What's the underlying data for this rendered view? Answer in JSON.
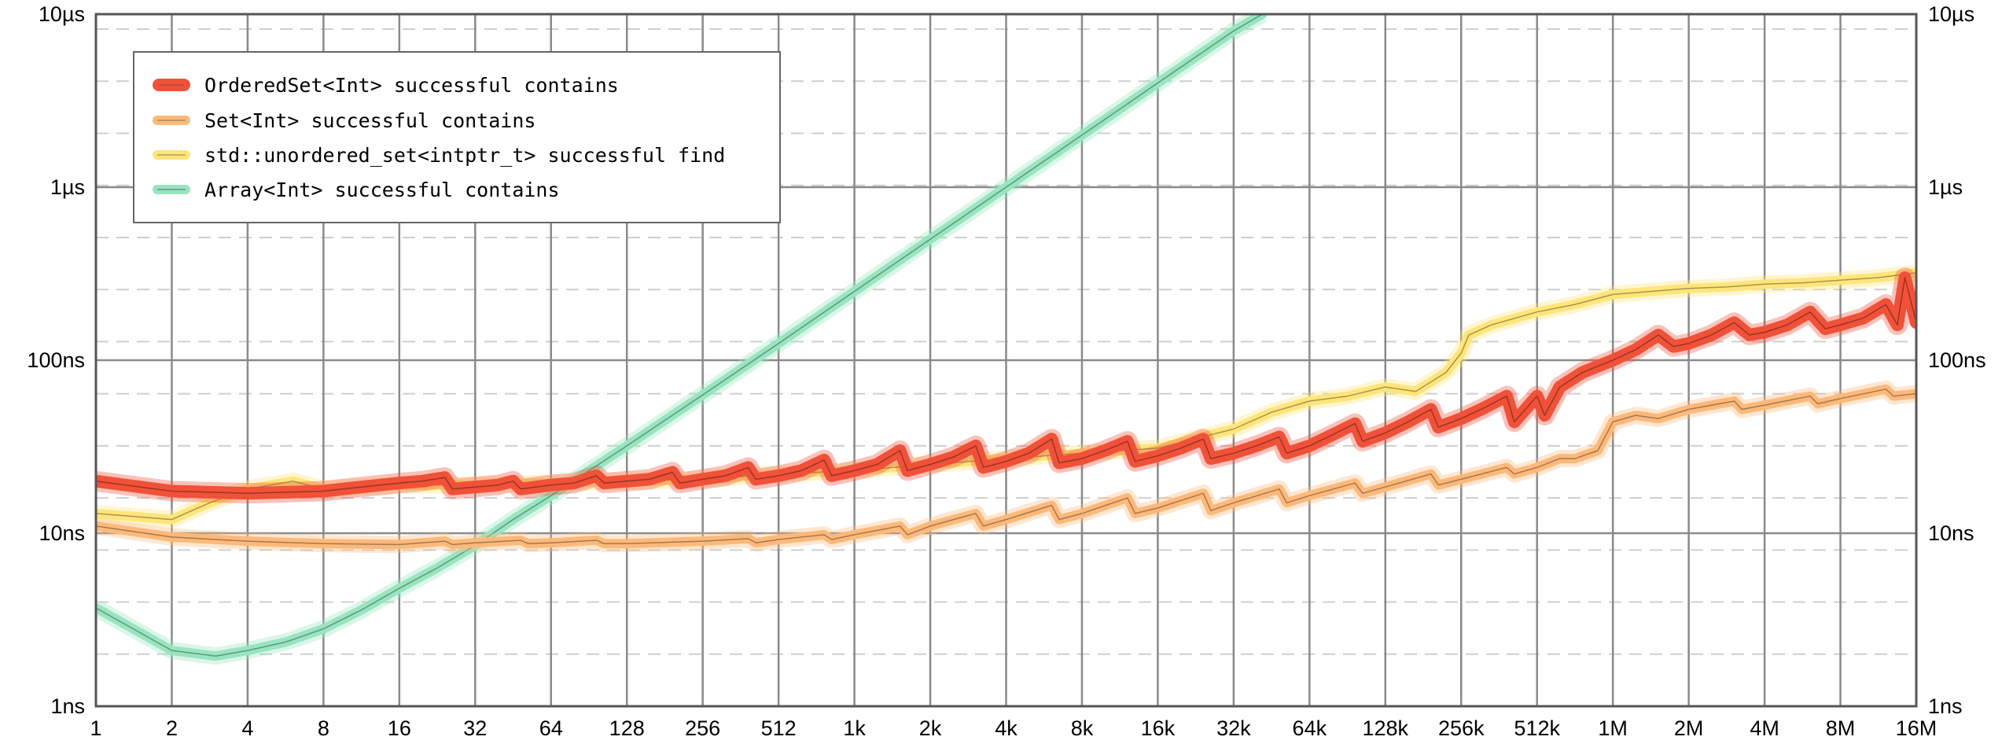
{
  "chart_data": {
    "type": "line",
    "title": "",
    "xlabel": "",
    "ylabel": "",
    "x_scale": "log2",
    "y_scale": "log10",
    "xlim": [
      1,
      16777216
    ],
    "ylim_ns": [
      1,
      10000
    ],
    "grid": true,
    "legend_position": "upper-left",
    "x_ticks": [
      {
        "value": 1,
        "label": "1"
      },
      {
        "value": 2,
        "label": "2"
      },
      {
        "value": 4,
        "label": "4"
      },
      {
        "value": 8,
        "label": "8"
      },
      {
        "value": 16,
        "label": "16"
      },
      {
        "value": 32,
        "label": "32"
      },
      {
        "value": 64,
        "label": "64"
      },
      {
        "value": 128,
        "label": "128"
      },
      {
        "value": 256,
        "label": "256"
      },
      {
        "value": 512,
        "label": "512"
      },
      {
        "value": 1024,
        "label": "1k"
      },
      {
        "value": 2048,
        "label": "2k"
      },
      {
        "value": 4096,
        "label": "4k"
      },
      {
        "value": 8192,
        "label": "8k"
      },
      {
        "value": 16384,
        "label": "16k"
      },
      {
        "value": 32768,
        "label": "32k"
      },
      {
        "value": 65536,
        "label": "64k"
      },
      {
        "value": 131072,
        "label": "128k"
      },
      {
        "value": 262144,
        "label": "256k"
      },
      {
        "value": 524288,
        "label": "512k"
      },
      {
        "value": 1048576,
        "label": "1M"
      },
      {
        "value": 2097152,
        "label": "2M"
      },
      {
        "value": 4194304,
        "label": "4M"
      },
      {
        "value": 8388608,
        "label": "8M"
      },
      {
        "value": 16777216,
        "label": "16M"
      }
    ],
    "y_ticks": [
      {
        "value": 1,
        "label": "1ns"
      },
      {
        "value": 10,
        "label": "10ns"
      },
      {
        "value": 100,
        "label": "100ns"
      },
      {
        "value": 1000,
        "label": "1µs"
      },
      {
        "value": 10000,
        "label": "10µs"
      }
    ],
    "series": [
      {
        "name": "OrderedSet<Int> successful contains",
        "color": "#F05138",
        "width": 16,
        "x_log2": [
          0,
          1,
          2,
          3,
          3.5,
          4,
          4.3,
          4.6,
          4.7,
          5,
          5.3,
          5.5,
          5.6,
          6,
          6.3,
          6.6,
          6.7,
          7,
          7.3,
          7.6,
          7.7,
          8,
          8.3,
          8.6,
          8.7,
          9,
          9.3,
          9.6,
          9.7,
          10,
          10.3,
          10.6,
          10.7,
          11,
          11.3,
          11.6,
          11.7,
          12,
          12.3,
          12.6,
          12.7,
          13,
          13.3,
          13.6,
          13.7,
          14,
          14.3,
          14.6,
          14.7,
          15,
          15.3,
          15.6,
          15.7,
          16,
          16.3,
          16.6,
          16.7,
          17,
          17.3,
          17.6,
          17.7,
          18,
          18.3,
          18.6,
          18.7,
          19,
          19.1,
          19.3,
          19.6,
          20,
          20.3,
          20.6,
          20.8,
          21,
          21.3,
          21.6,
          21.8,
          22,
          22.3,
          22.6,
          22.8,
          23,
          23.3,
          23.6,
          23.75,
          23.85,
          24
        ],
        "y_ns": [
          20,
          17.5,
          17,
          17.5,
          18.5,
          19.5,
          20,
          21,
          18,
          18.5,
          19,
          20,
          18,
          19,
          19.5,
          21.5,
          19.5,
          20,
          20.5,
          22.5,
          19.5,
          20.5,
          21.5,
          24,
          20.5,
          21.5,
          23,
          26.5,
          21.5,
          23,
          25,
          30,
          23,
          25,
          27.5,
          32,
          24,
          26,
          29,
          35,
          25.5,
          27,
          30,
          34,
          26,
          28,
          31,
          35,
          27,
          29,
          32,
          36,
          29,
          32,
          37,
          43,
          34,
          38,
          44,
          52,
          41,
          46,
          53,
          62,
          44,
          62,
          48,
          70,
          85,
          100,
          115,
          140,
          120,
          125,
          140,
          165,
          140,
          145,
          160,
          190,
          152,
          160,
          175,
          210,
          160,
          300,
          165,
          168
        ]
      },
      {
        "name": "Set<Int> successful contains",
        "color": "#FDB97A",
        "width": 12,
        "x_log2": [
          0,
          1,
          2,
          3,
          4,
          4.6,
          4.7,
          5,
          5.6,
          5.7,
          6,
          6.6,
          6.7,
          7,
          8,
          8.6,
          8.7,
          9,
          9.6,
          9.7,
          10,
          10.6,
          10.7,
          11,
          11.6,
          11.7,
          12,
          12.6,
          12.7,
          13,
          13.6,
          13.7,
          14,
          14.6,
          14.7,
          15,
          15.6,
          15.7,
          16,
          16.6,
          16.7,
          17,
          17.6,
          17.7,
          18,
          18.6,
          18.7,
          19,
          19.3,
          19.5,
          19.8,
          20,
          20.3,
          20.6,
          21,
          21.6,
          21.7,
          22,
          22.6,
          22.7,
          23,
          23.6,
          23.7,
          24
        ],
        "y_ns": [
          11,
          9.5,
          9,
          8.7,
          8.6,
          9,
          8.6,
          8.8,
          9.1,
          8.7,
          8.8,
          9.1,
          8.7,
          8.7,
          9,
          9.3,
          8.8,
          9.2,
          9.8,
          9.2,
          9.8,
          11,
          9.8,
          11,
          13,
          11,
          12,
          14.5,
          12,
          13,
          16,
          13,
          14,
          17,
          13.5,
          15,
          18,
          15,
          16.5,
          19.5,
          17,
          18.5,
          22,
          19,
          20.5,
          24,
          22,
          24,
          27,
          27,
          30,
          44,
          48,
          46,
          52,
          58,
          52,
          55,
          62,
          56,
          60,
          68,
          62,
          64,
          68
        ]
      },
      {
        "name": "std::unordered_set<intptr_t> successful find",
        "color": "#FFE57A",
        "width": 12,
        "x_log2": [
          0,
          1,
          1.5,
          2,
          2.6,
          3,
          4,
          5,
          6,
          7,
          8,
          9,
          10,
          11,
          12,
          13,
          14,
          15,
          15.5,
          16,
          16.5,
          17,
          17.4,
          17.8,
          18,
          18.1,
          18.4,
          19,
          19.5,
          20,
          20.5,
          21,
          21.5,
          22,
          22.5,
          23,
          23.5,
          24
        ],
        "y_ns": [
          13,
          12,
          15,
          18,
          20,
          18,
          19,
          19,
          19.5,
          20,
          20.5,
          22,
          23,
          25,
          27,
          29,
          31,
          40,
          50,
          58,
          62,
          70,
          66,
          85,
          110,
          140,
          160,
          190,
          210,
          240,
          250,
          260,
          265,
          275,
          280,
          290,
          300,
          320
        ]
      },
      {
        "name": "Array<Int> successful contains",
        "color": "#98E5C0",
        "width": 12,
        "x_log2": [
          0,
          1,
          1.58,
          2,
          2.5,
          3,
          3.5,
          4,
          4.5,
          5,
          5.5,
          6,
          7,
          8,
          9,
          10,
          11,
          12,
          13,
          14,
          15,
          15.38
        ],
        "y_ns": [
          3.7,
          2.1,
          1.95,
          2.1,
          2.35,
          2.8,
          3.6,
          4.8,
          6.3,
          8.5,
          12,
          16.5,
          32,
          63,
          125,
          250,
          500,
          1000,
          2000,
          4000,
          8000,
          10000
        ]
      }
    ]
  },
  "legend": {
    "items": [
      {
        "label": "OrderedSet<Int> successful contains",
        "color": "#F05138"
      },
      {
        "label": "Set<Int> successful contains",
        "color": "#FDB97A"
      },
      {
        "label": "std::unordered_set<intptr_t> successful find",
        "color": "#FFE57A"
      },
      {
        "label": "Array<Int> successful contains",
        "color": "#98E5C0"
      }
    ]
  }
}
